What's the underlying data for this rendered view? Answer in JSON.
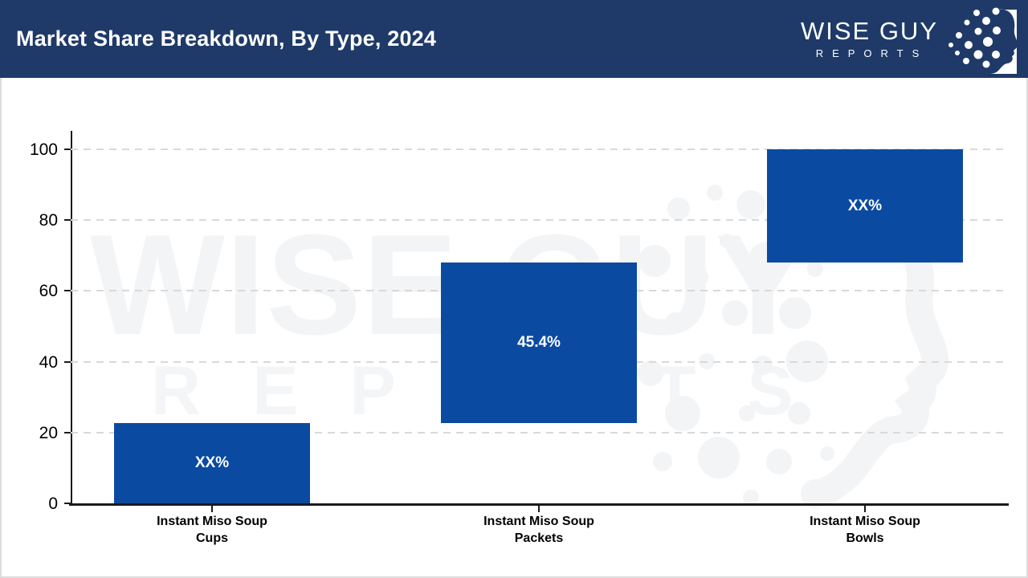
{
  "header": {
    "title": "Market Share Breakdown, By Type, 2024",
    "bg_color": "#1f3a68"
  },
  "logo": {
    "line1": "WISE GUY",
    "line2": "REPORTS"
  },
  "watermark": {
    "line1": "WISE GUY",
    "line2": "REPORTS"
  },
  "chart_data": {
    "type": "bar",
    "subtype": "waterfall",
    "title": "Market Share Breakdown, By Type, 2024",
    "ylim": [
      0,
      100
    ],
    "yticks": [
      0,
      20,
      40,
      60,
      80,
      100
    ],
    "grid": "horizontal-dashed",
    "legend": "none",
    "bar_color": "#0b4aa1",
    "bars": [
      {
        "category": [
          "Instant Miso Soup",
          "Cups"
        ],
        "start": 0,
        "end": 22.6,
        "label": "XX%"
      },
      {
        "category": [
          "Instant Miso Soup",
          "Packets"
        ],
        "start": 22.6,
        "end": 68.0,
        "label": "45.4%"
      },
      {
        "category": [
          "Instant Miso Soup",
          "Bowls"
        ],
        "start": 68.0,
        "end": 100.0,
        "label": "XX%"
      }
    ]
  },
  "colors": {
    "header_bg": "#1f3a68",
    "bar": "#0b4aa1",
    "grid": "#d9d9d9",
    "axis": "#1a1a1a",
    "watermark": "#f3f4f6"
  }
}
